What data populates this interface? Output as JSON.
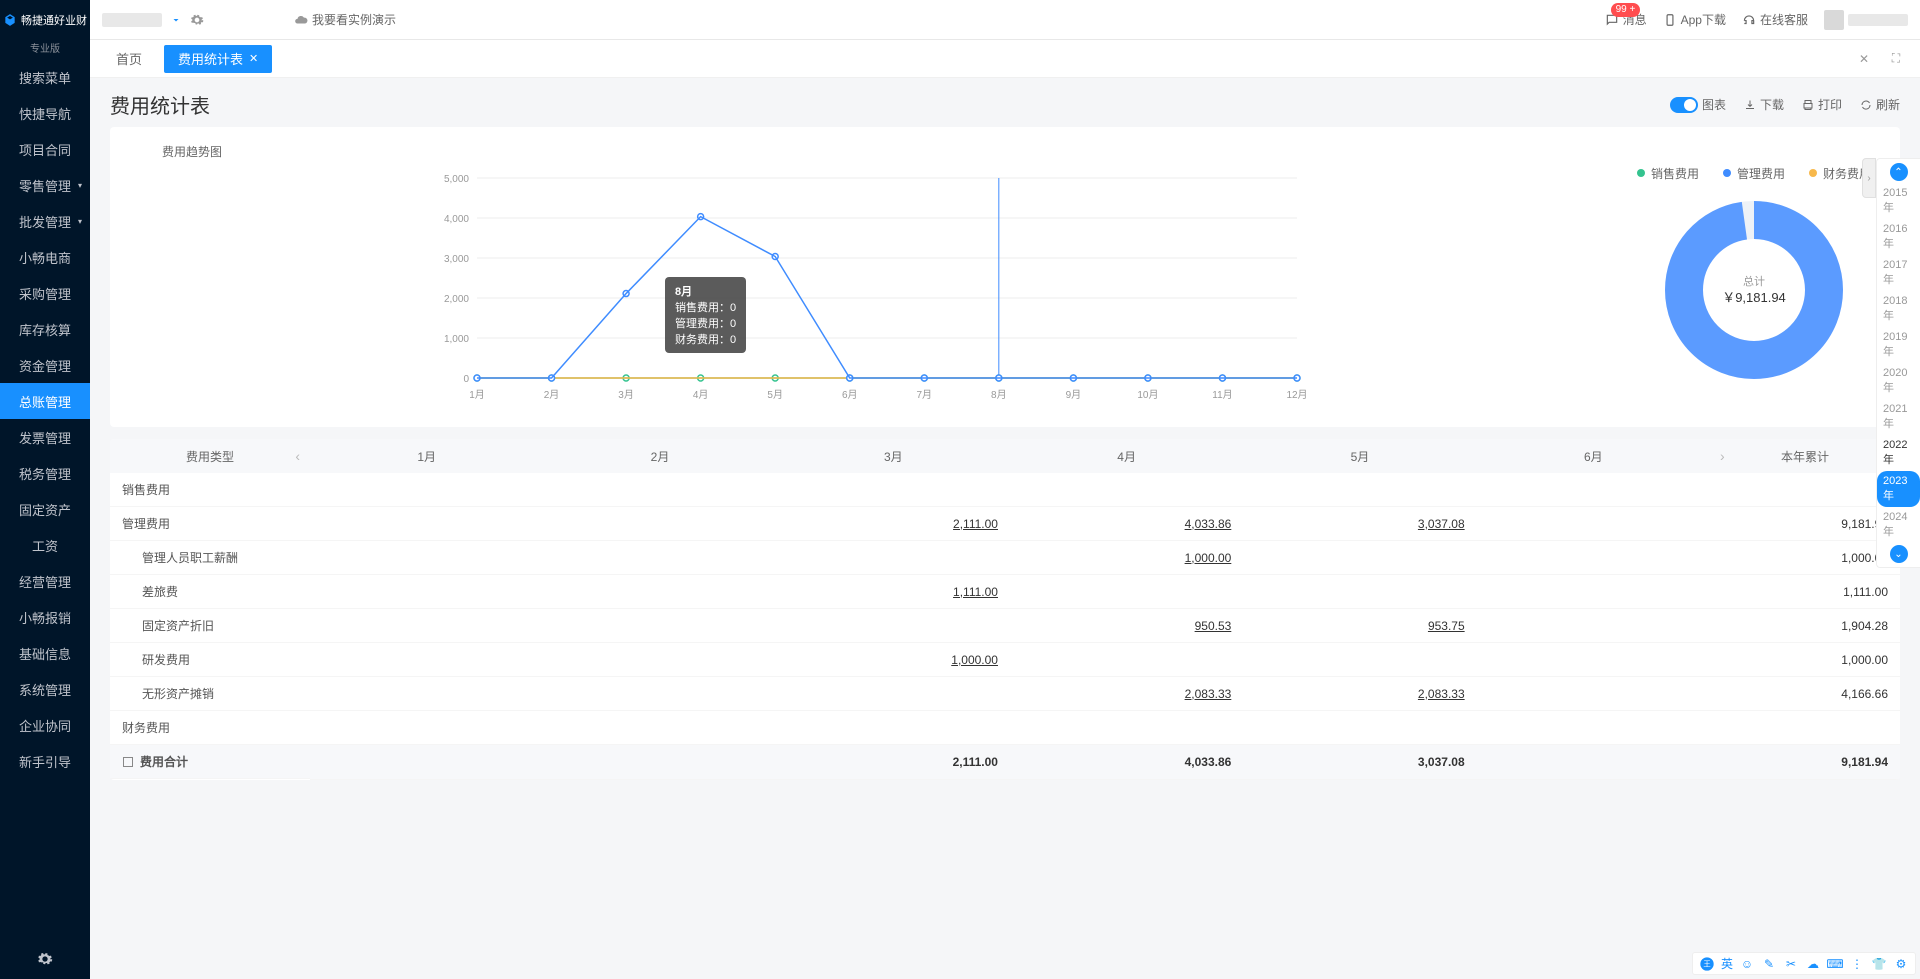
{
  "brand": {
    "name": "畅捷通好业财",
    "edition": "专业版"
  },
  "topbar": {
    "demo": "我要看实例演示",
    "messages": "消息",
    "messages_badge": "99 +",
    "app_download": "App下载",
    "support": "在线客服"
  },
  "sidebar": {
    "items": [
      {
        "label": "搜索菜单",
        "caret": false
      },
      {
        "label": "快捷导航",
        "caret": false
      },
      {
        "label": "项目合同",
        "caret": false
      },
      {
        "label": "零售管理",
        "caret": true
      },
      {
        "label": "批发管理",
        "caret": true
      },
      {
        "label": "小畅电商",
        "caret": false
      },
      {
        "label": "采购管理",
        "caret": false
      },
      {
        "label": "库存核算",
        "caret": false
      },
      {
        "label": "资金管理",
        "caret": false
      },
      {
        "label": "总账管理",
        "caret": false,
        "active": true
      },
      {
        "label": "发票管理",
        "caret": false
      },
      {
        "label": "税务管理",
        "caret": false
      },
      {
        "label": "固定资产",
        "caret": false
      },
      {
        "label": "工资",
        "caret": false
      },
      {
        "label": "经营管理",
        "caret": false
      },
      {
        "label": "小畅报销",
        "caret": false
      },
      {
        "label": "基础信息",
        "caret": false
      },
      {
        "label": "系统管理",
        "caret": false
      },
      {
        "label": "企业协同",
        "caret": false
      },
      {
        "label": "新手引导",
        "caret": false
      }
    ]
  },
  "tabs": {
    "home": "首页",
    "active": "费用统计表"
  },
  "page": {
    "title": "费用统计表",
    "actions": {
      "chart": "图表",
      "download": "下载",
      "print": "打印",
      "refresh": "刷新"
    }
  },
  "chart": {
    "trend_title": "费用趋势图",
    "legend": {
      "sales": "销售费用",
      "admin": "管理费用",
      "finance": "财务费用"
    },
    "legend_colors": {
      "sales": "#34c38f",
      "admin": "#3f8cff",
      "finance": "#f7b84b"
    },
    "yticks": [
      "0",
      "1,000",
      "2,000",
      "3,000",
      "4,000",
      "5,000"
    ],
    "ymax": 5000,
    "months": [
      "1月",
      "2月",
      "3月",
      "4月",
      "5月",
      "6月",
      "7月",
      "8月",
      "9月",
      "10月",
      "11月",
      "12月"
    ],
    "series": {
      "sales": [
        0,
        0,
        0,
        0,
        0,
        0,
        0,
        0,
        0,
        0,
        0,
        0
      ],
      "admin": [
        0,
        0,
        2111,
        4034,
        3037,
        0,
        0,
        0,
        0,
        0,
        0,
        0
      ],
      "finance": [
        0,
        0,
        0,
        0,
        0,
        0,
        0,
        0,
        0,
        0,
        0,
        0
      ]
    },
    "tooltip": {
      "month": "8月",
      "lines": [
        "销售费用：0",
        "管理费用：0",
        "财务费用：0"
      ],
      "hover_index": 7
    },
    "donut": {
      "label": "总计",
      "amount": "￥9,181.94",
      "color": "#5b9bff",
      "track": "#eef2f7"
    }
  },
  "years": {
    "list": [
      "2015年",
      "2016年",
      "2017年",
      "2018年",
      "2019年",
      "2020年",
      "2021年",
      "2022年",
      "2023年",
      "2024年"
    ],
    "current": "2022年",
    "selected": "2023年"
  },
  "table": {
    "type_header": "费用类型",
    "month_headers": [
      "1月",
      "2月",
      "3月",
      "4月",
      "5月",
      "6月"
    ],
    "total_header": "本年累计",
    "rows": [
      {
        "label": "销售费用",
        "indent": false,
        "vals": [
          "",
          "",
          "",
          "",
          "",
          ""
        ],
        "total": "",
        "u": []
      },
      {
        "label": "管理费用",
        "indent": false,
        "vals": [
          "",
          "",
          "2,111.00",
          "4,033.86",
          "3,037.08",
          ""
        ],
        "total": "9,181.94",
        "u": [
          2,
          3,
          4
        ]
      },
      {
        "label": "管理人员职工薪酬",
        "indent": true,
        "vals": [
          "",
          "",
          "",
          "1,000.00",
          "",
          ""
        ],
        "total": "1,000.00",
        "u": [
          3
        ]
      },
      {
        "label": "差旅费",
        "indent": true,
        "vals": [
          "",
          "",
          "1,111.00",
          "",
          "",
          ""
        ],
        "total": "1,111.00",
        "u": [
          2
        ]
      },
      {
        "label": "固定资产折旧",
        "indent": true,
        "vals": [
          "",
          "",
          "",
          "950.53",
          "953.75",
          ""
        ],
        "total": "1,904.28",
        "u": [
          3,
          4
        ]
      },
      {
        "label": "研发费用",
        "indent": true,
        "vals": [
          "",
          "",
          "1,000.00",
          "",
          "",
          ""
        ],
        "total": "1,000.00",
        "u": [
          2
        ]
      },
      {
        "label": "无形资产摊销",
        "indent": true,
        "vals": [
          "",
          "",
          "",
          "2,083.33",
          "2,083.33",
          ""
        ],
        "total": "4,166.66",
        "u": [
          3,
          4
        ]
      },
      {
        "label": "财务费用",
        "indent": false,
        "vals": [
          "",
          "",
          "",
          "",
          "",
          ""
        ],
        "total": "",
        "u": []
      }
    ],
    "total_row": {
      "label": "费用合计",
      "vals": [
        "",
        "",
        "2,111.00",
        "4,033.86",
        "3,037.08",
        ""
      ],
      "total": "9,181.94"
    }
  },
  "ime": {
    "lang": "英"
  }
}
